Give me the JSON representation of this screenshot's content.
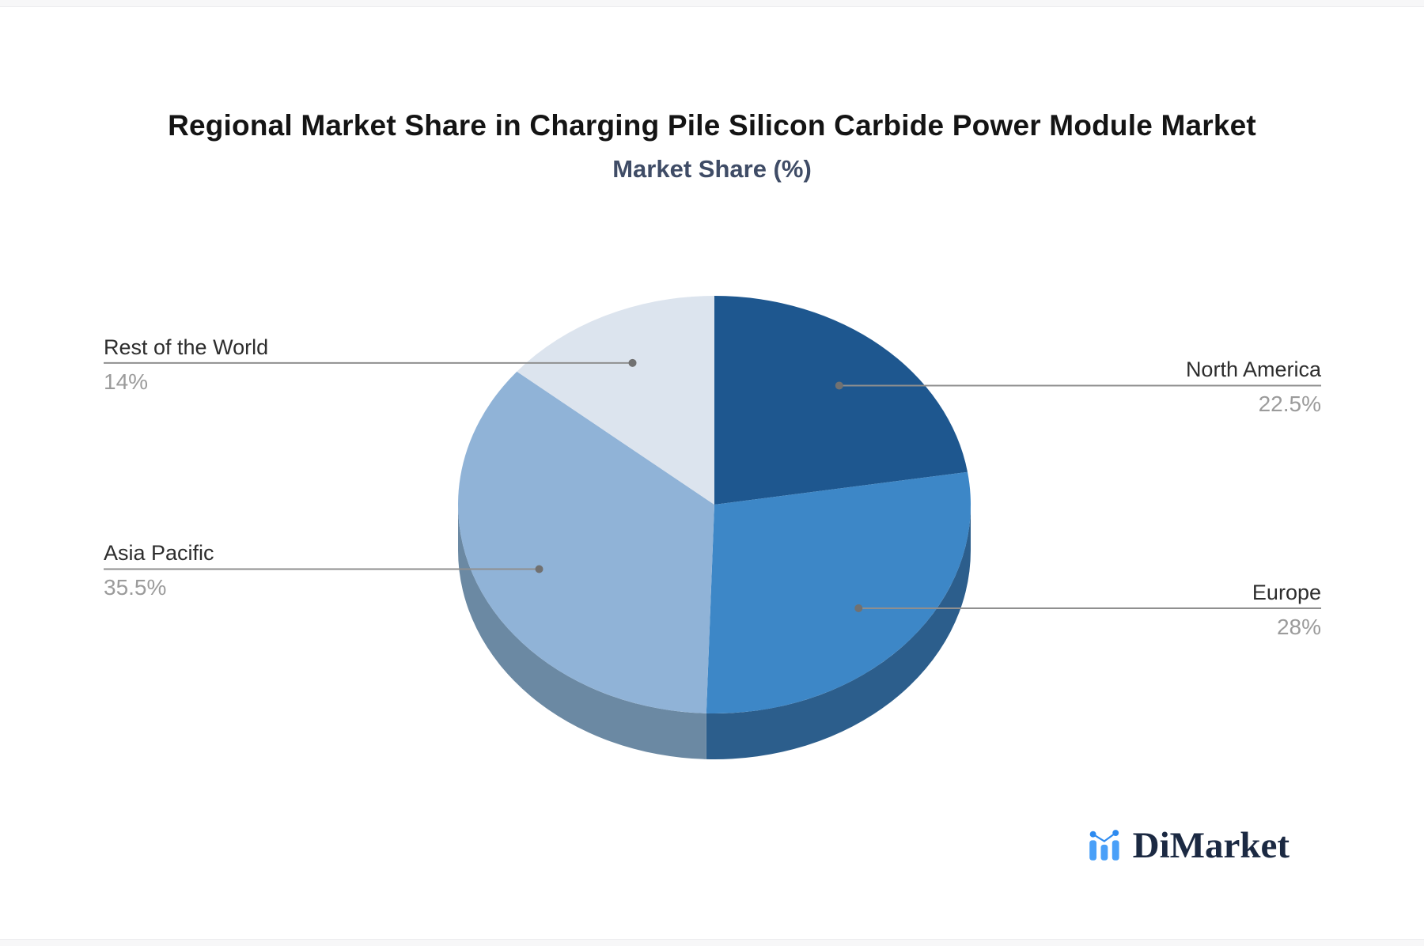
{
  "header": {
    "title": "Regional Market Share in Charging Pile Silicon Carbide Power Module Market",
    "subtitle": "Market Share (%)"
  },
  "chart_data": {
    "type": "pie",
    "title": "Regional Market Share in Charging Pile Silicon Carbide Power Module Market",
    "subtitle": "Market Share (%)",
    "style": "3d-pie",
    "unit": "percent",
    "start_angle_deg": 0,
    "direction": "clockwise",
    "legend_position": "callout-labels-with-leader-lines",
    "slices": [
      {
        "label": "North America",
        "value": 22.5,
        "display": "22.5%",
        "color": "#1E578F",
        "depth_color": "#17426B"
      },
      {
        "label": "Europe",
        "value": 28,
        "display": "28%",
        "color": "#3D87C7",
        "depth_color": "#2C5E8C"
      },
      {
        "label": "Asia Pacific",
        "value": 35.5,
        "display": "35.5%",
        "color": "#90B3D7",
        "depth_color": "#6B89A3"
      },
      {
        "label": "Rest of the World",
        "value": 14,
        "display": "14%",
        "color": "#DCE4EE",
        "depth_color": "#A9B6C6"
      }
    ],
    "leader_line_color": "#8f8f8f",
    "leader_dot_color": "#717171",
    "label_color": "#2d2d2d",
    "value_color": "#9b9b9b"
  },
  "logo": {
    "text": "DiMarket",
    "icon": "bar-chart-trend-icon",
    "text_color": "#1b2942",
    "bar_color": "#4aa0f8",
    "accent_color": "#2e8bf0"
  }
}
